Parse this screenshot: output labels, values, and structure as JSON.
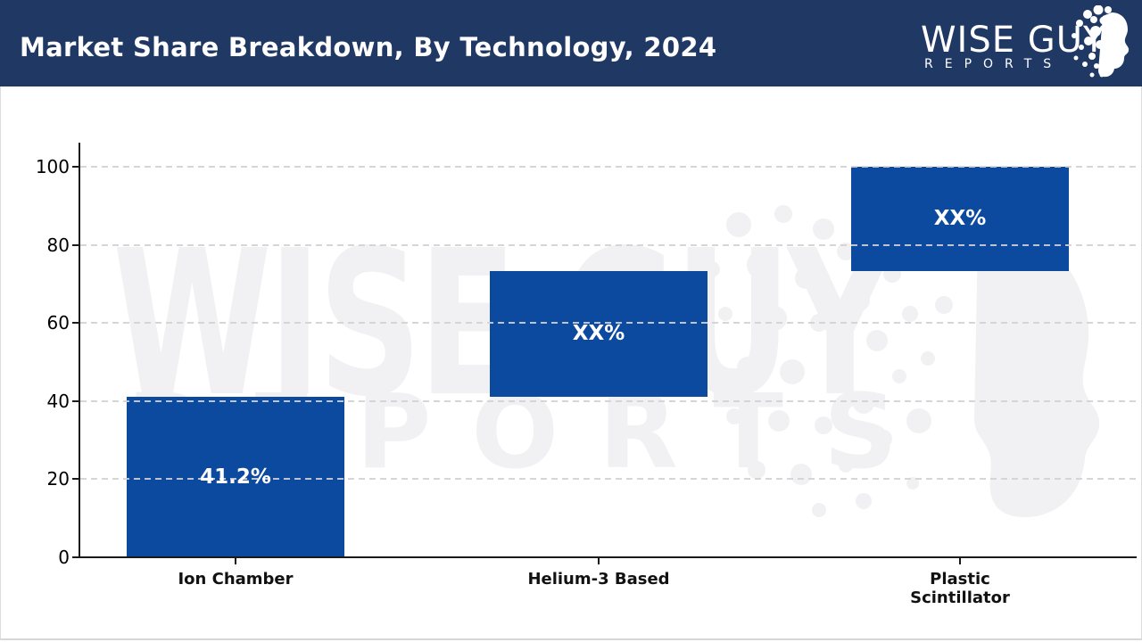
{
  "header": {
    "title": "Market Share Breakdown, By Technology, 2024",
    "logo": {
      "wordmark": "WISE GUY",
      "subtext": "REPORTS"
    }
  },
  "watermark": {
    "wordmark": "WISE GUY",
    "subtext": "REPORTS"
  },
  "chart_data": {
    "type": "bar",
    "subtype": "cumulative-waterfall",
    "title": "Market Share Breakdown, By Technology, 2024",
    "categories": [
      "Ion Chamber",
      "Helium-3 Based",
      "Plastic Scintillator"
    ],
    "category_lines": [
      [
        "Ion Chamber"
      ],
      [
        "Helium-3 Based"
      ],
      [
        "Plastic",
        "Scintillator"
      ]
    ],
    "series": [
      {
        "name": "Ion Chamber",
        "label": "41.2%",
        "value": 41.2,
        "start": 0,
        "end": 41.2
      },
      {
        "name": "Helium-3 Based",
        "label": "XX%",
        "value": 32.2,
        "start": 41.2,
        "end": 73.4
      },
      {
        "name": "Plastic Scintillator",
        "label": "XX%",
        "value": 26.6,
        "start": 73.4,
        "end": 100
      }
    ],
    "xlabel": "",
    "ylabel": "",
    "ylim": [
      0,
      100
    ],
    "yticks": [
      0,
      20,
      40,
      60,
      80,
      100
    ],
    "grid": "horizontal-dashed",
    "legend": "none",
    "bar_color": "#0b4a9e"
  },
  "colors": {
    "header_bg": "#1f3864",
    "bar": "#0b4a9e",
    "grid": "#d2d2d2",
    "axis": "#1a1a1a",
    "watermark": "#f1f1f3"
  }
}
